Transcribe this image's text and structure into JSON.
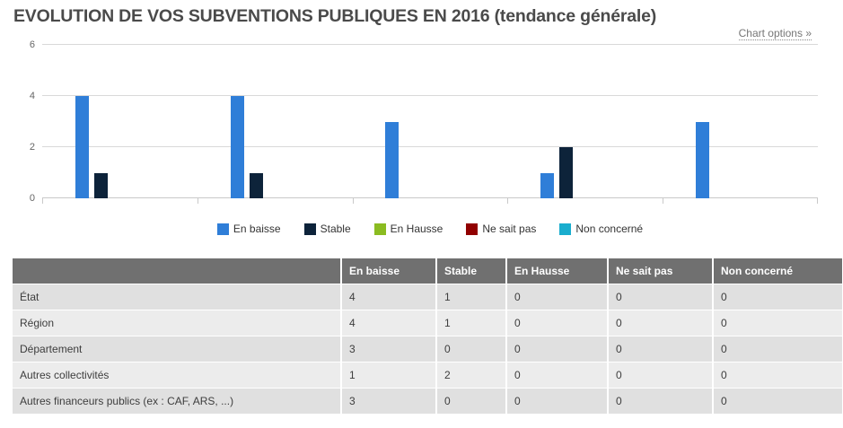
{
  "header": {
    "title": "EVOLUTION DE VOS SUBVENTIONS PUBLIQUES EN 2016 (tendance générale)",
    "chart_options_label": "Chart options »"
  },
  "chart_data": {
    "type": "bar",
    "title": "EVOLUTION DE VOS SUBVENTIONS PUBLIQUES EN 2016 (tendance générale)",
    "categories": [
      "État",
      "Région",
      "Département",
      "Autres collectivités",
      "Autres financeurs publics (ex : CAF, ARS, ...)"
    ],
    "series": [
      {
        "name": "En baisse",
        "color": "#2f7ed8",
        "values": [
          4,
          4,
          3,
          1,
          3
        ]
      },
      {
        "name": "Stable",
        "color": "#0d233a",
        "values": [
          1,
          1,
          0,
          2,
          0
        ]
      },
      {
        "name": "En Hausse",
        "color": "#8bbc21",
        "values": [
          0,
          0,
          0,
          0,
          0
        ]
      },
      {
        "name": "Ne sait pas",
        "color": "#910000",
        "values": [
          0,
          0,
          0,
          0,
          0
        ]
      },
      {
        "name": "Non concerné",
        "color": "#1aadce",
        "values": [
          0,
          0,
          0,
          0,
          0
        ]
      }
    ],
    "xlabel": "",
    "ylabel": "",
    "ylim": [
      0,
      6
    ],
    "yticks": [
      0,
      2,
      4,
      6
    ],
    "grid": true,
    "legend_position": "bottom"
  },
  "table": {
    "columns": [
      "",
      "En baisse",
      "Stable",
      "En Hausse",
      "Ne sait pas",
      "Non concerné"
    ],
    "rows": [
      {
        "label": "État",
        "values": [
          "4",
          "1",
          "0",
          "0",
          "0"
        ]
      },
      {
        "label": "Région",
        "values": [
          "4",
          "1",
          "0",
          "0",
          "0"
        ]
      },
      {
        "label": "Département",
        "values": [
          "3",
          "0",
          "0",
          "0",
          "0"
        ]
      },
      {
        "label": "Autres collectivités",
        "values": [
          "1",
          "2",
          "0",
          "0",
          "0"
        ]
      },
      {
        "label": "Autres financeurs publics (ex : CAF, ARS, ...)",
        "values": [
          "3",
          "0",
          "0",
          "0",
          "0"
        ]
      }
    ]
  },
  "colors": {
    "title_text": "#4a4a4a",
    "header_bg": "#707070",
    "row_odd_bg": "#e0e0e0",
    "row_even_bg": "#ececec",
    "gridline": "#d9d9d9",
    "axis_line": "#c9c9c9"
  }
}
